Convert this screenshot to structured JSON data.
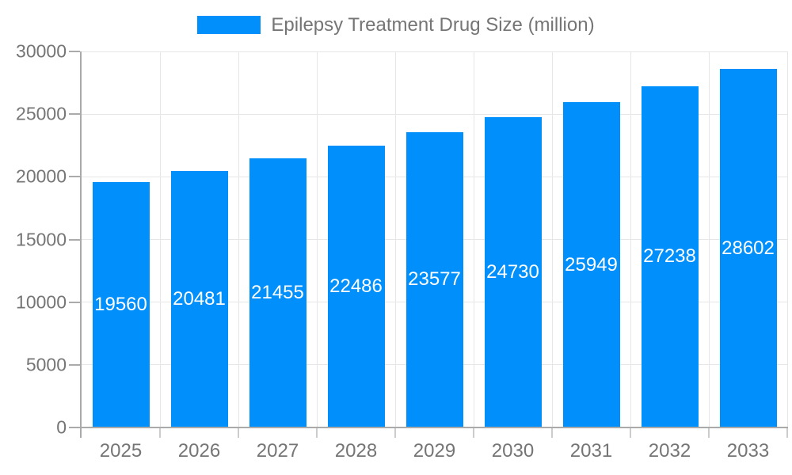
{
  "chart_data": {
    "type": "bar",
    "title": "Epilepsy Treatment Drug Size (million)",
    "categories": [
      "2025",
      "2026",
      "2027",
      "2028",
      "2029",
      "2030",
      "2031",
      "2032",
      "2033"
    ],
    "values": [
      19560,
      20481,
      21455,
      22486,
      23577,
      24730,
      25949,
      27238,
      28602
    ],
    "xlabel": "",
    "ylabel": "",
    "ylim": [
      0,
      30000
    ],
    "y_ticks": [
      0,
      5000,
      10000,
      15000,
      20000,
      25000,
      30000
    ],
    "grid": true,
    "legend_position": "top-center",
    "value_label_position": "inside-center",
    "colors": {
      "bar": "#008FFB",
      "axis_text": "#757575",
      "value_label": "#ffffff",
      "gridline": "#e6e6e6",
      "axis_line": "#aaaaaa",
      "tick": "#cccccc",
      "background": "#ffffff"
    }
  }
}
